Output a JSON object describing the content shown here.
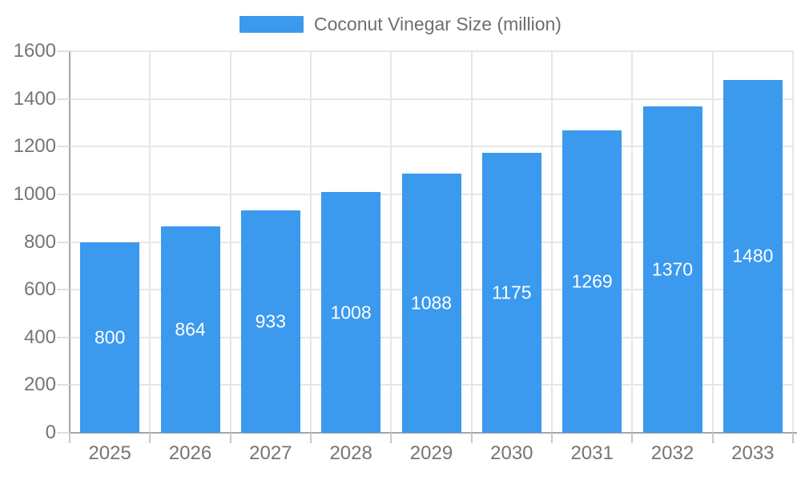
{
  "chart_data": {
    "type": "bar",
    "title": "Coconut Vinegar Size (million)",
    "categories": [
      "2025",
      "2026",
      "2027",
      "2028",
      "2029",
      "2030",
      "2031",
      "2032",
      "2033"
    ],
    "series": [
      {
        "name": "Coconut Vinegar Size (million)",
        "values": [
          800,
          864,
          933,
          1008,
          1088,
          1175,
          1269,
          1370,
          1480
        ]
      }
    ],
    "xlabel": "",
    "ylabel": "",
    "ylim": [
      0,
      1600
    ],
    "yticks": [
      0,
      200,
      400,
      600,
      800,
      1000,
      1200,
      1400,
      1600
    ],
    "grid": true,
    "legend_position": "top-center",
    "value_labels": "inside-center-white",
    "colors": {
      "bar": "#3B99EE",
      "value_label": "#ffffff",
      "axis_label": "#757575",
      "legend_text": "#6e6e6e",
      "axis_line": "#a6a6a6",
      "gridline": "#e6e6e6",
      "tick_y": "#e0e0e0",
      "tick_x": "#c9c9c9",
      "background": "#ffffff"
    }
  }
}
